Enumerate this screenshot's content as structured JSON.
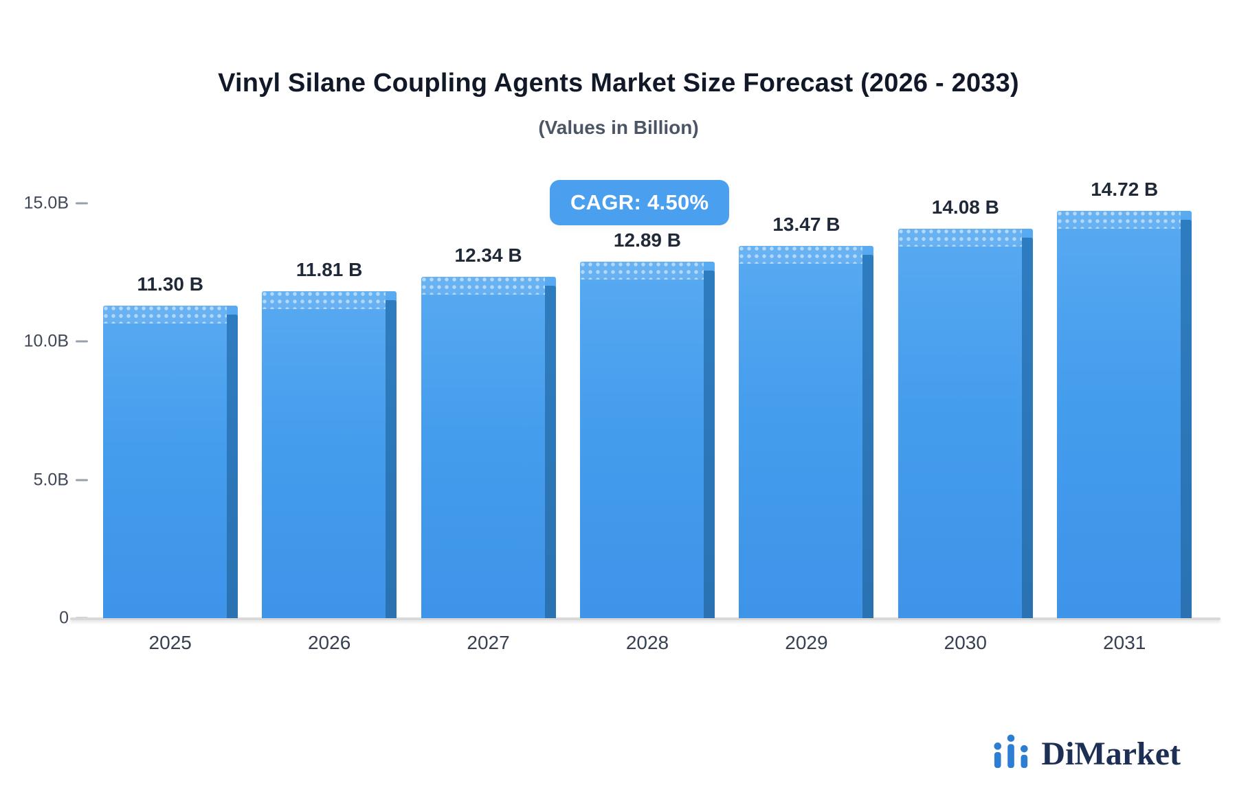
{
  "title": "Vinyl Silane Coupling Agents Market Size Forecast (2026 - 2033)",
  "subtitle": "(Values in Billion)",
  "badge": {
    "label": "CAGR: 4.50%"
  },
  "chart_data": {
    "type": "bar",
    "title": "Vinyl Silane Coupling Agents Market Size Forecast (2026 - 2033)",
    "subtitle": "(Values in Billion)",
    "unit": "Billion",
    "cagr": "4.50%",
    "categories": [
      "2025",
      "2026",
      "2027",
      "2028",
      "2029",
      "2030",
      "2031"
    ],
    "values": [
      11.3,
      11.81,
      12.34,
      12.89,
      13.47,
      14.08,
      14.72
    ],
    "value_labels": [
      "11.30 B",
      "11.81 B",
      "12.34 B",
      "12.89 B",
      "13.47 B",
      "14.08 B",
      "14.72 B"
    ],
    "ylim": [
      0,
      15
    ],
    "yticks": [
      {
        "value": 15,
        "label": "15.0B"
      },
      {
        "value": 10,
        "label": "10.0B"
      },
      {
        "value": 5,
        "label": "5.0B"
      },
      {
        "value": 0,
        "label": "0"
      }
    ],
    "grid": false,
    "legend": "none",
    "bar_color": "#459ded",
    "bar_side_color": "#2c79b9",
    "badge_color": "#4aa0ee"
  },
  "footer": {
    "brand": "DiMarket"
  }
}
